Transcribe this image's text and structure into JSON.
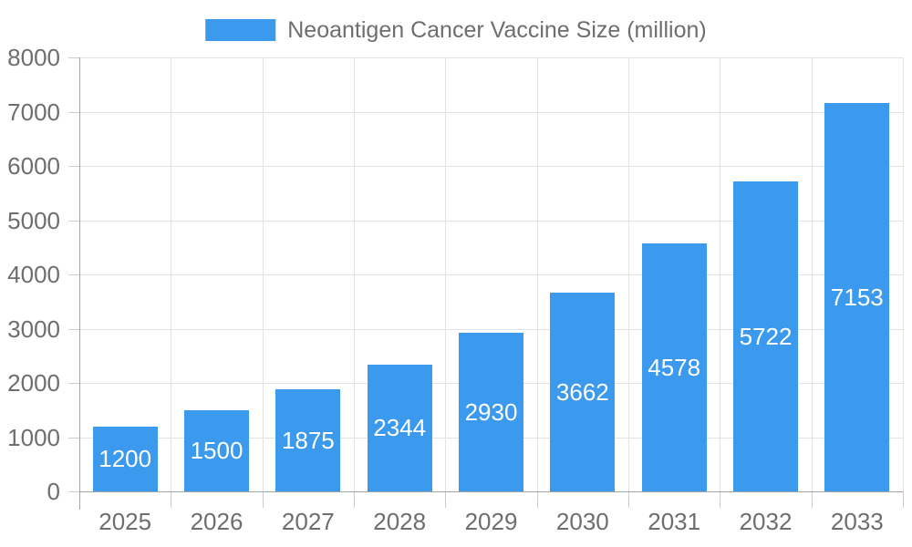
{
  "chart_data": {
    "type": "bar",
    "title": "Neoantigen Cancer Vaccine Size (million)",
    "legend": [
      "Neoantigen Cancer Vaccine Size (million)"
    ],
    "legend_position": "top-center",
    "categories": [
      "2025",
      "2026",
      "2027",
      "2028",
      "2029",
      "2030",
      "2031",
      "2032",
      "2033"
    ],
    "series": [
      {
        "name": "Neoantigen Cancer Vaccine Size (million)",
        "values": [
          1200,
          1500,
          1875,
          2344,
          2930,
          3662,
          4578,
          5722,
          7153
        ]
      }
    ],
    "data_labels_shown": true,
    "xlabel": "",
    "ylabel": "",
    "ylim": [
      0,
      8000
    ],
    "y_tick_step": 1000,
    "y_tick_labels": [
      "0",
      "1000",
      "2000",
      "3000",
      "4000",
      "5000",
      "6000",
      "7000",
      "8000"
    ],
    "grid": "both"
  },
  "colors": {
    "bar": "#3b99ee",
    "bar_value_label": "#ffffff",
    "axis_text": "#6e6e6e",
    "legend_text": "#6e6e6e",
    "gridline": "#e3e3e3",
    "axis_line": "#a3a3a3",
    "tick": "#cccccc",
    "background": "#ffffff"
  }
}
